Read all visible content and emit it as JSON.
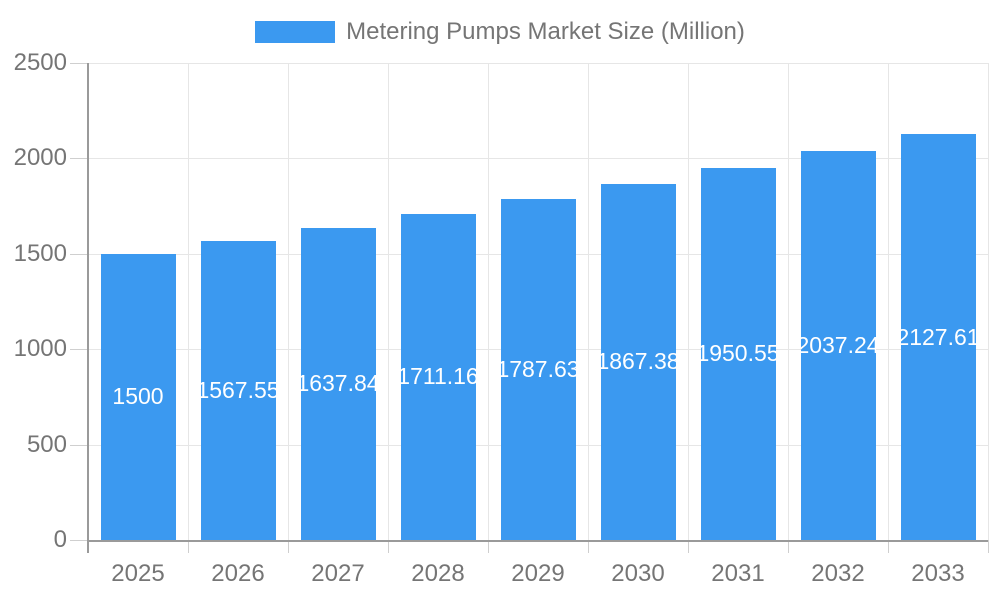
{
  "legend": {
    "label": "Metering Pumps Market Size (Million)"
  },
  "colors": {
    "bar": "#3B99F0",
    "bar_label_text": "#ffffff",
    "axis_line": "#9a9a9a",
    "grid_line": "#e6e6e6",
    "tick_mark": "#cfcfcf",
    "tick_text": "#757575",
    "background": "#ffffff"
  },
  "chart_data": {
    "type": "bar",
    "title": "Metering Pumps Market Size (Million)",
    "series_name": "Metering Pumps Market Size (Million)",
    "categories": [
      "2025",
      "2026",
      "2027",
      "2028",
      "2029",
      "2030",
      "2031",
      "2032",
      "2033"
    ],
    "values": [
      1500,
      1567.55,
      1637.84,
      1711.16,
      1787.63,
      1867.38,
      1950.55,
      2037.24,
      2127.61
    ],
    "value_labels": [
      "1500",
      "1567.55",
      "1637.84",
      "1711.16",
      "1787.63",
      "1867.38",
      "1950.55",
      "2037.24",
      "2127.61"
    ],
    "xlabel": "",
    "ylabel": "",
    "ylim": [
      0,
      2500
    ],
    "yticks": [
      0,
      500,
      1000,
      1500,
      2000,
      2500
    ],
    "grid": true,
    "legend_position": "top",
    "value_labels_inside_bars": true
  }
}
